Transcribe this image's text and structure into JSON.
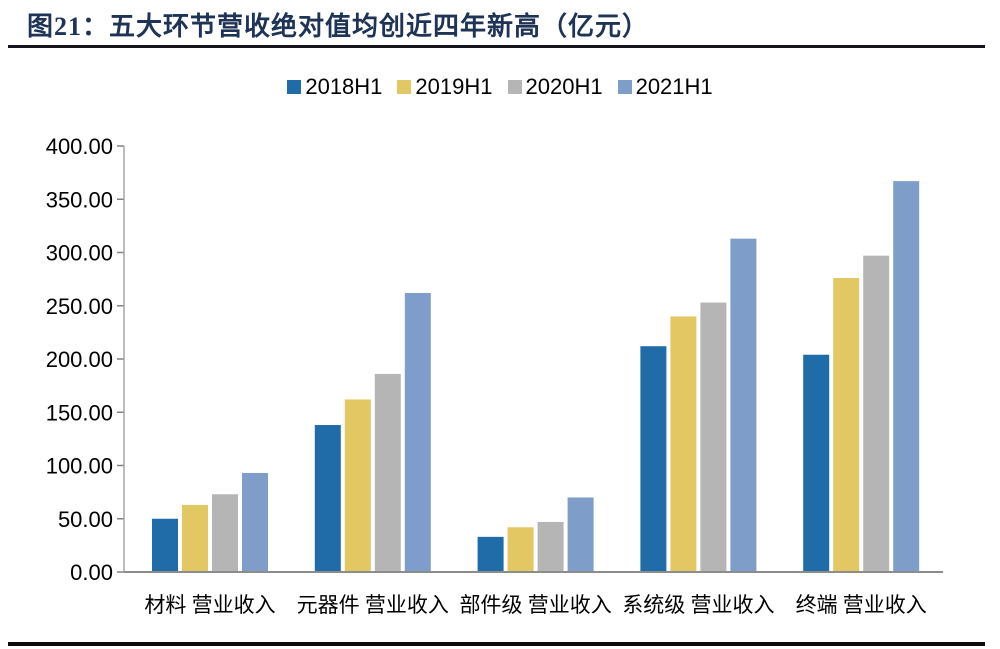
{
  "figure": {
    "title": "图21：五大环节营收绝对值均创近四年新高（亿元）"
  },
  "chart_data": {
    "type": "bar",
    "title": "五大环节营收绝对值均创近四年新高（亿元）",
    "unit": "亿元",
    "categories": [
      "材料 营业收入",
      "元器件 营业收入",
      "部件级 营业收入",
      "系统级 营业收入",
      "终端 营业收入"
    ],
    "series": [
      {
        "name": "2018H1",
        "color": "#1f6ca8",
        "values": [
          50,
          138,
          33,
          212,
          204
        ]
      },
      {
        "name": "2019H1",
        "color": "#e2c763",
        "values": [
          63,
          162,
          42,
          240,
          276
        ]
      },
      {
        "name": "2020H1",
        "color": "#b5b5b5",
        "values": [
          73,
          186,
          47,
          253,
          297
        ]
      },
      {
        "name": "2021H1",
        "color": "#7f9dc9",
        "values": [
          93,
          262,
          70,
          313,
          367
        ]
      }
    ],
    "ylim": [
      0,
      400
    ],
    "ytick_step": 50,
    "ytick_labels": [
      "0.00",
      "50.00",
      "100.00",
      "150.00",
      "200.00",
      "250.00",
      "300.00",
      "350.00",
      "400.00"
    ],
    "legend_position": "top",
    "grid": false,
    "axis_color": "#8c8c8c",
    "tick_color": "#808080"
  }
}
